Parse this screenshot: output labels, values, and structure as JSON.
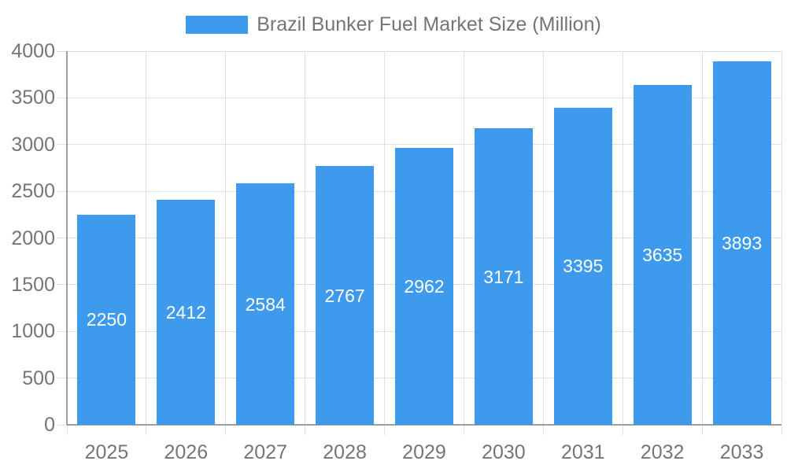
{
  "chart_data": {
    "type": "bar",
    "title": "Brazil Bunker Fuel Market Size (Million)",
    "legend_position": "top",
    "categories": [
      "2025",
      "2026",
      "2027",
      "2028",
      "2029",
      "2030",
      "2031",
      "2032",
      "2033"
    ],
    "values": [
      2250,
      2412,
      2584,
      2767,
      2962,
      3171,
      3395,
      3635,
      3893
    ],
    "value_labels": [
      "2250",
      "2412",
      "2584",
      "2767",
      "2962",
      "3171",
      "3395",
      "3635",
      "3893"
    ],
    "xlabel": "",
    "ylabel": "",
    "ylim": [
      0,
      4000
    ],
    "y_ticks": [
      0,
      500,
      1000,
      1500,
      2000,
      2500,
      3000,
      3500,
      4000
    ],
    "y_tick_labels": [
      "0",
      "500",
      "1000",
      "1500",
      "2000",
      "2500",
      "3000",
      "3500",
      "4000"
    ],
    "grid": true,
    "colors": {
      "bar": "#3d9aec",
      "value_label": "#ffffff",
      "axis_text": "#757575",
      "grid_line": "#e0e0e0",
      "axis_line": "#9e9e9e",
      "background": "#ffffff"
    }
  }
}
